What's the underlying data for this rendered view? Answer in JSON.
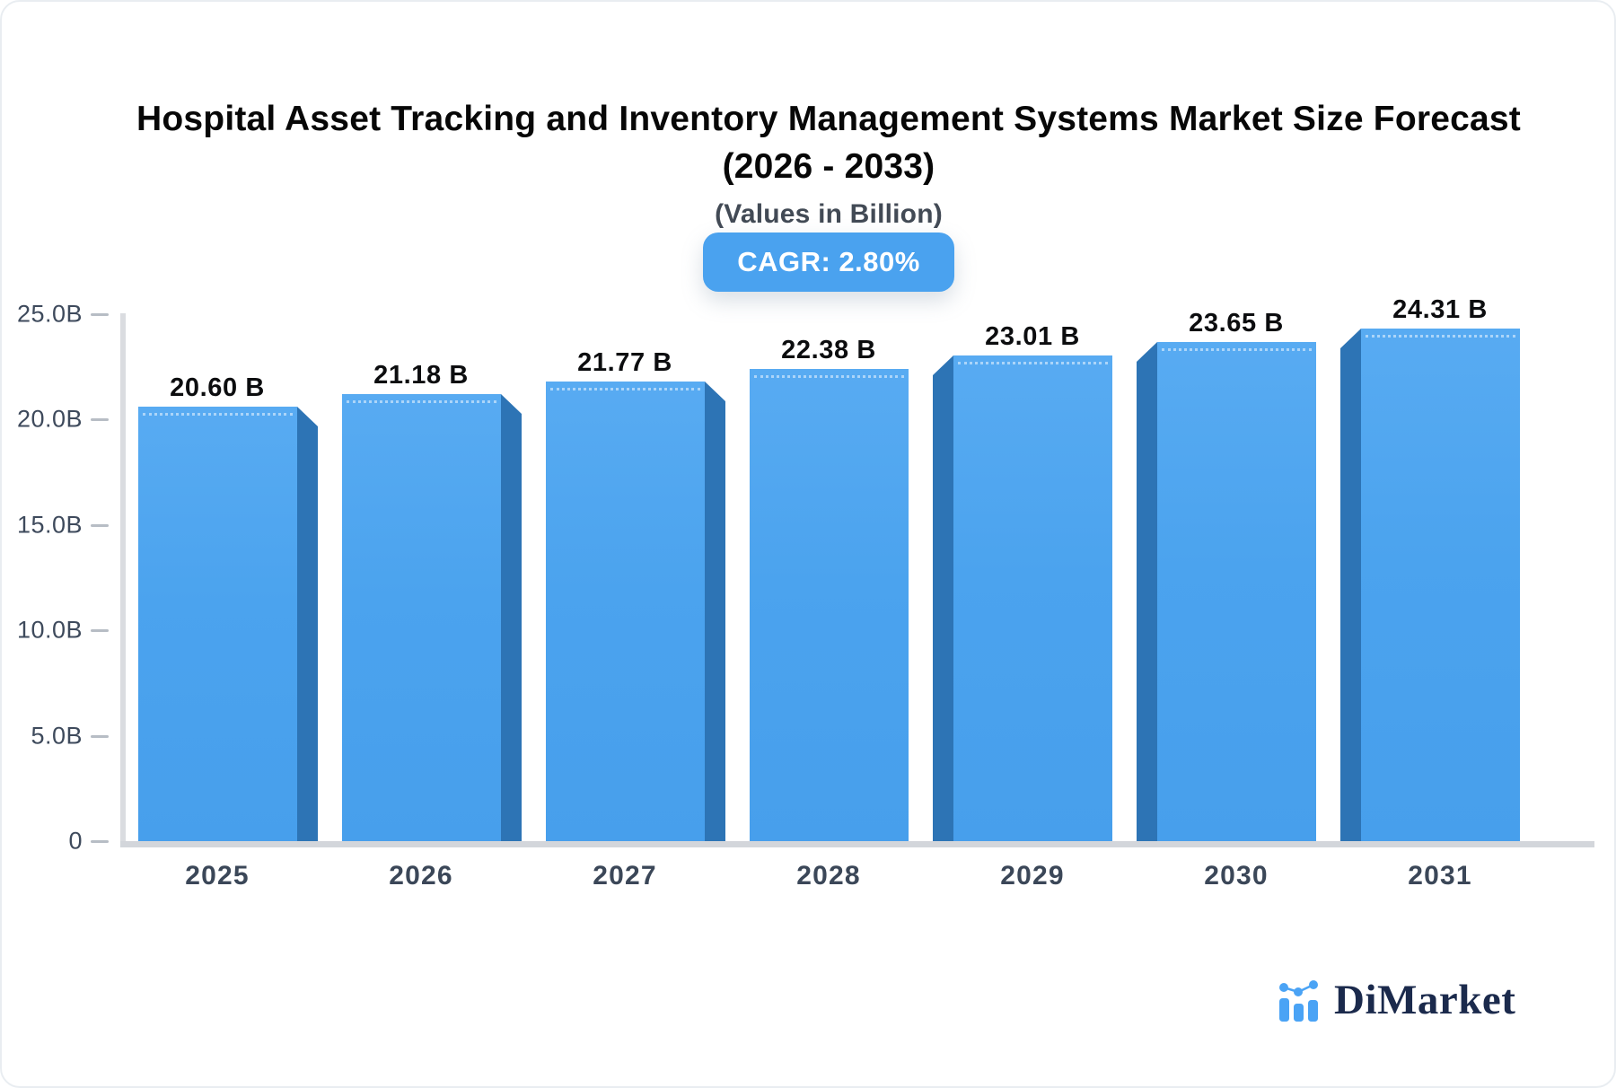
{
  "header": {
    "title_line1": "Hospital Asset Tracking and Inventory Management Systems Market Size Forecast",
    "title_line2": "(2026 - 2033)",
    "subtitle": "(Values in Billion)",
    "cagr_badge": "CAGR: 2.80%"
  },
  "chart_data": {
    "type": "bar",
    "title": "Hospital Asset Tracking and Inventory Management Systems Market Size Forecast (2026 - 2033)",
    "subtitle": "(Values in Billion)",
    "cagr": "2.80%",
    "categories": [
      "2025",
      "2026",
      "2027",
      "2028",
      "2029",
      "2030",
      "2031"
    ],
    "values": [
      20.6,
      21.18,
      21.77,
      22.38,
      23.01,
      23.65,
      24.31
    ],
    "value_labels": [
      "20.60 B",
      "21.18 B",
      "21.77 B",
      "22.38 B",
      "23.01 B",
      "23.65 B",
      "24.31 B"
    ],
    "unit": "Billion",
    "ylim": [
      0,
      25
    ],
    "yticks": [
      {
        "value": 25,
        "label": "25.0B"
      },
      {
        "value": 20,
        "label": "20.0B"
      },
      {
        "value": 15,
        "label": "15.0B"
      },
      {
        "value": 10,
        "label": "10.0B"
      },
      {
        "value": 5,
        "label": "5.0B"
      },
      {
        "value": 0,
        "label": "0"
      }
    ],
    "grid": false,
    "legend": null,
    "bar_color": "#4aa1ee",
    "bar_color_light": "#58abf2",
    "bar_side_color": "#2d74b5",
    "badge_color": "#4aa2ef",
    "style": "3d-perspective-bars"
  },
  "footer": {
    "logo_text": "DiMarket"
  }
}
